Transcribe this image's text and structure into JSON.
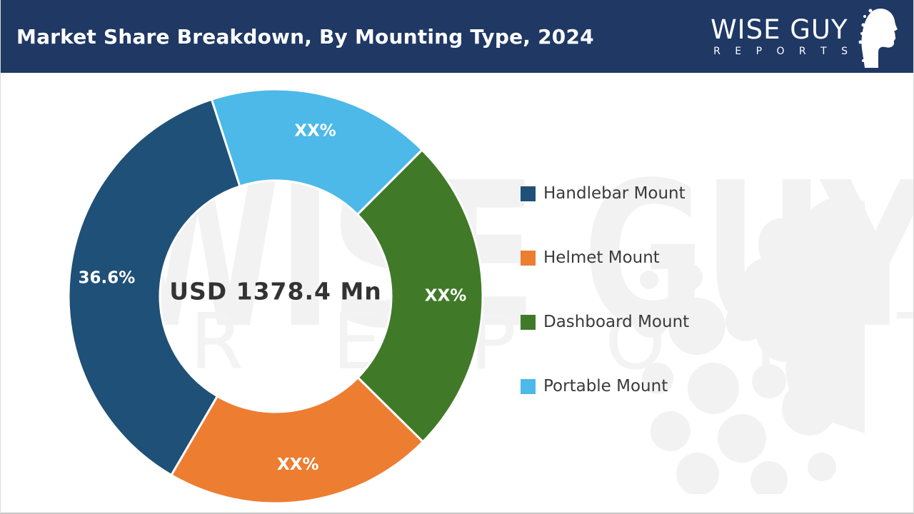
{
  "header": {
    "title": "Market Share Breakdown, By Mounting Type, 2024",
    "logo": {
      "line1": "WISE GUY",
      "line2": "R E P O R T S"
    },
    "bg_color": "#1f3864"
  },
  "watermark": {
    "line1": "WISE GUY",
    "line2": "R E P O R T S"
  },
  "chart_data": {
    "type": "pie",
    "donut": true,
    "title": "Market Share Breakdown, By Mounting Type, 2024",
    "center_label": "USD 1378.4 Mn",
    "start_angle_deg": 108,
    "direction": "ccw",
    "legend_position": "right",
    "slice_separator_color": "#ffffff",
    "slices": [
      {
        "name": "Handlebar Mount",
        "value_pct": 36.6,
        "slice_label": "36.6%",
        "color": "#1f5077"
      },
      {
        "name": "Helmet Mount",
        "value_pct": 21.0,
        "slice_label": "XX%",
        "color": "#ed7d31"
      },
      {
        "name": "Dashboard Mount",
        "value_pct": 24.9,
        "slice_label": "XX%",
        "color": "#407a28"
      },
      {
        "name": "Portable Mount",
        "value_pct": 17.5,
        "slice_label": "XX%",
        "color": "#4cb9e8"
      }
    ]
  }
}
